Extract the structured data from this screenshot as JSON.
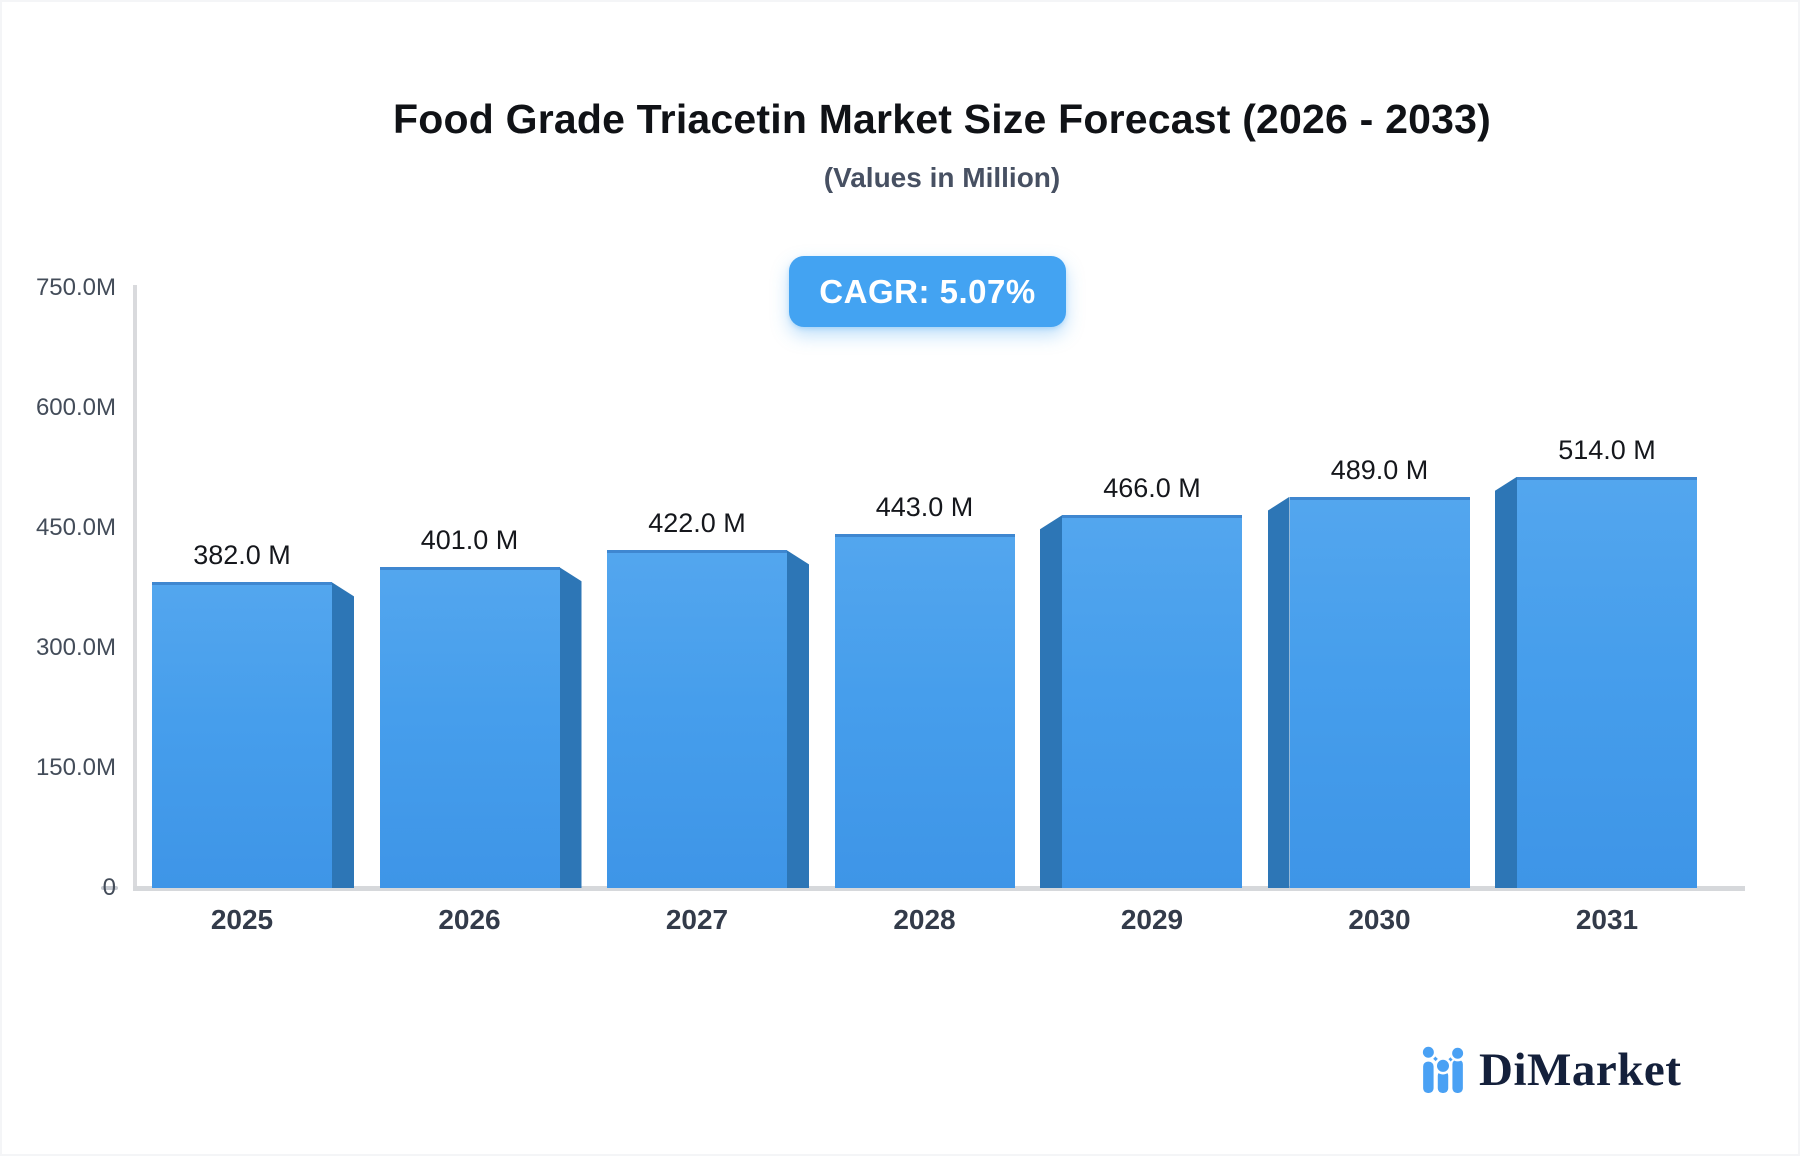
{
  "header": {
    "title": "Food Grade Triacetin Market Size Forecast (2026 - 2033)",
    "subtitle": "(Values in Million)",
    "cagr_label": "CAGR: 5.07%"
  },
  "chart_data": {
    "type": "bar",
    "title": "Food Grade Triacetin Market Size Forecast (2026 - 2033)",
    "subtitle": "(Values in Million)",
    "categories": [
      "2025",
      "2026",
      "2027",
      "2028",
      "2029",
      "2030",
      "2031"
    ],
    "values": [
      382,
      401,
      422,
      443,
      466,
      489,
      514
    ],
    "value_labels": [
      "382.0 M",
      "401.0 M",
      "422.0 M",
      "443.0 M",
      "466.0 M",
      "489.0 M",
      "514.0 M"
    ],
    "unit": "Million",
    "cagr": "5.07%",
    "ylim": [
      0,
      750
    ],
    "ytick_labels": [
      "750.0M",
      "600.0M",
      "450.0M",
      "300.0M",
      "150.0M",
      "0"
    ],
    "ytick_values": [
      750,
      600,
      450,
      300,
      150,
      0
    ],
    "grid": false,
    "legend": "none",
    "bar_style": "3d-extruded-toward-center",
    "bar_color": "#42a5f5",
    "bar_side_color": "#2d76b6",
    "axis_color": "#d6d8db"
  },
  "logo": {
    "text": "DiMarket",
    "icon": "bar-chart-logo-icon",
    "icon_color": "#4aa1f4",
    "text_color": "#14203b"
  }
}
